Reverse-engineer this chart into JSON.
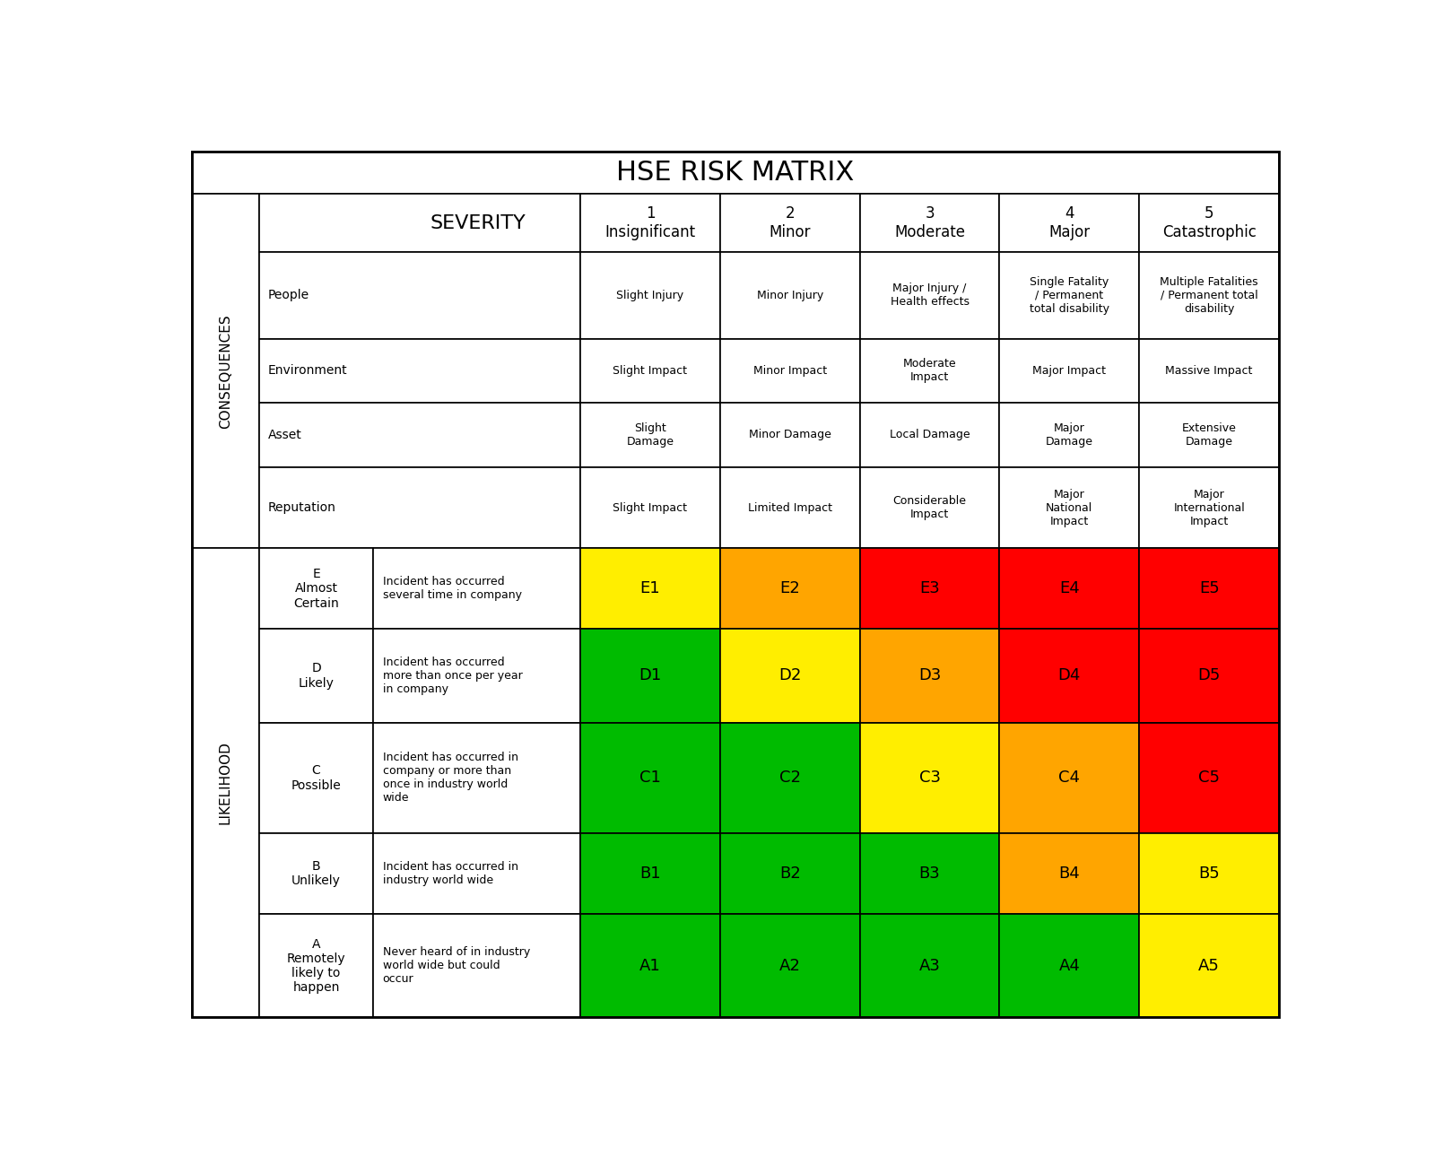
{
  "title": "HSE RISK MATRIX",
  "severity_label": "SEVERITY",
  "consequences_label": "CONSEQUENCES",
  "likelihood_label": "LIKELIHOOD",
  "severity_cols": [
    {
      "num": "1",
      "name": "Insignificant"
    },
    {
      "num": "2",
      "name": "Minor"
    },
    {
      "num": "3",
      "name": "Moderate"
    },
    {
      "num": "4",
      "name": "Major"
    },
    {
      "num": "5",
      "name": "Catastrophic"
    }
  ],
  "consequence_rows": [
    {
      "category": "People",
      "descriptions": [
        "Slight Injury",
        "Minor Injury",
        "Major Injury /\nHealth effects",
        "Single Fatality\n/ Permanent\ntotal disability",
        "Multiple Fatalities\n/ Permanent total\ndisability"
      ]
    },
    {
      "category": "Environment",
      "descriptions": [
        "Slight Impact",
        "Minor Impact",
        "Moderate\nImpact",
        "Major Impact",
        "Massive Impact"
      ]
    },
    {
      "category": "Asset",
      "descriptions": [
        "Slight\nDamage",
        "Minor Damage",
        "Local Damage",
        "Major\nDamage",
        "Extensive\nDamage"
      ]
    },
    {
      "category": "Reputation",
      "descriptions": [
        "Slight Impact",
        "Limited Impact",
        "Considerable\nImpact",
        "Major\nNational\nImpact",
        "Major\nInternational\nImpact"
      ]
    }
  ],
  "likelihood_rows": [
    {
      "letter": "E",
      "name": "Almost\nCertain",
      "description": "Incident has occurred\nseveral time in company",
      "risk_colors": [
        "#FFEE00",
        "#FFA500",
        "#FF0000",
        "#FF0000",
        "#FF0000"
      ],
      "labels": [
        "E1",
        "E2",
        "E3",
        "E4",
        "E5"
      ]
    },
    {
      "letter": "D",
      "name": "Likely",
      "description": "Incident has occurred\nmore than once per year\nin company",
      "risk_colors": [
        "#00BB00",
        "#FFEE00",
        "#FFA500",
        "#FF0000",
        "#FF0000"
      ],
      "labels": [
        "D1",
        "D2",
        "D3",
        "D4",
        "D5"
      ]
    },
    {
      "letter": "C",
      "name": "Possible",
      "description": "Incident has occurred in\ncompany or more than\nonce in industry world\nwide",
      "risk_colors": [
        "#00BB00",
        "#00BB00",
        "#FFEE00",
        "#FFA500",
        "#FF0000"
      ],
      "labels": [
        "C1",
        "C2",
        "C3",
        "C4",
        "C5"
      ]
    },
    {
      "letter": "B",
      "name": "Unlikely",
      "description": "Incident has occurred in\nindustry world wide",
      "risk_colors": [
        "#00BB00",
        "#00BB00",
        "#00BB00",
        "#FFA500",
        "#FFEE00"
      ],
      "labels": [
        "B1",
        "B2",
        "B3",
        "B4",
        "B5"
      ]
    },
    {
      "letter": "A",
      "name": "Remotely\nlikely to\nhappen",
      "description": "Never heard of in industry\nworld wide but could\noccur",
      "risk_colors": [
        "#00BB00",
        "#00BB00",
        "#00BB00",
        "#00BB00",
        "#FFEE00"
      ],
      "labels": [
        "A1",
        "A2",
        "A3",
        "A4",
        "A5"
      ]
    }
  ],
  "bg_color": "#FFFFFF",
  "title_fontsize": 22,
  "header_fontsize": 12,
  "cell_fontsize": 9,
  "label_fontsize": 13,
  "side_label_fontsize": 11,
  "severity_fontsize": 16
}
